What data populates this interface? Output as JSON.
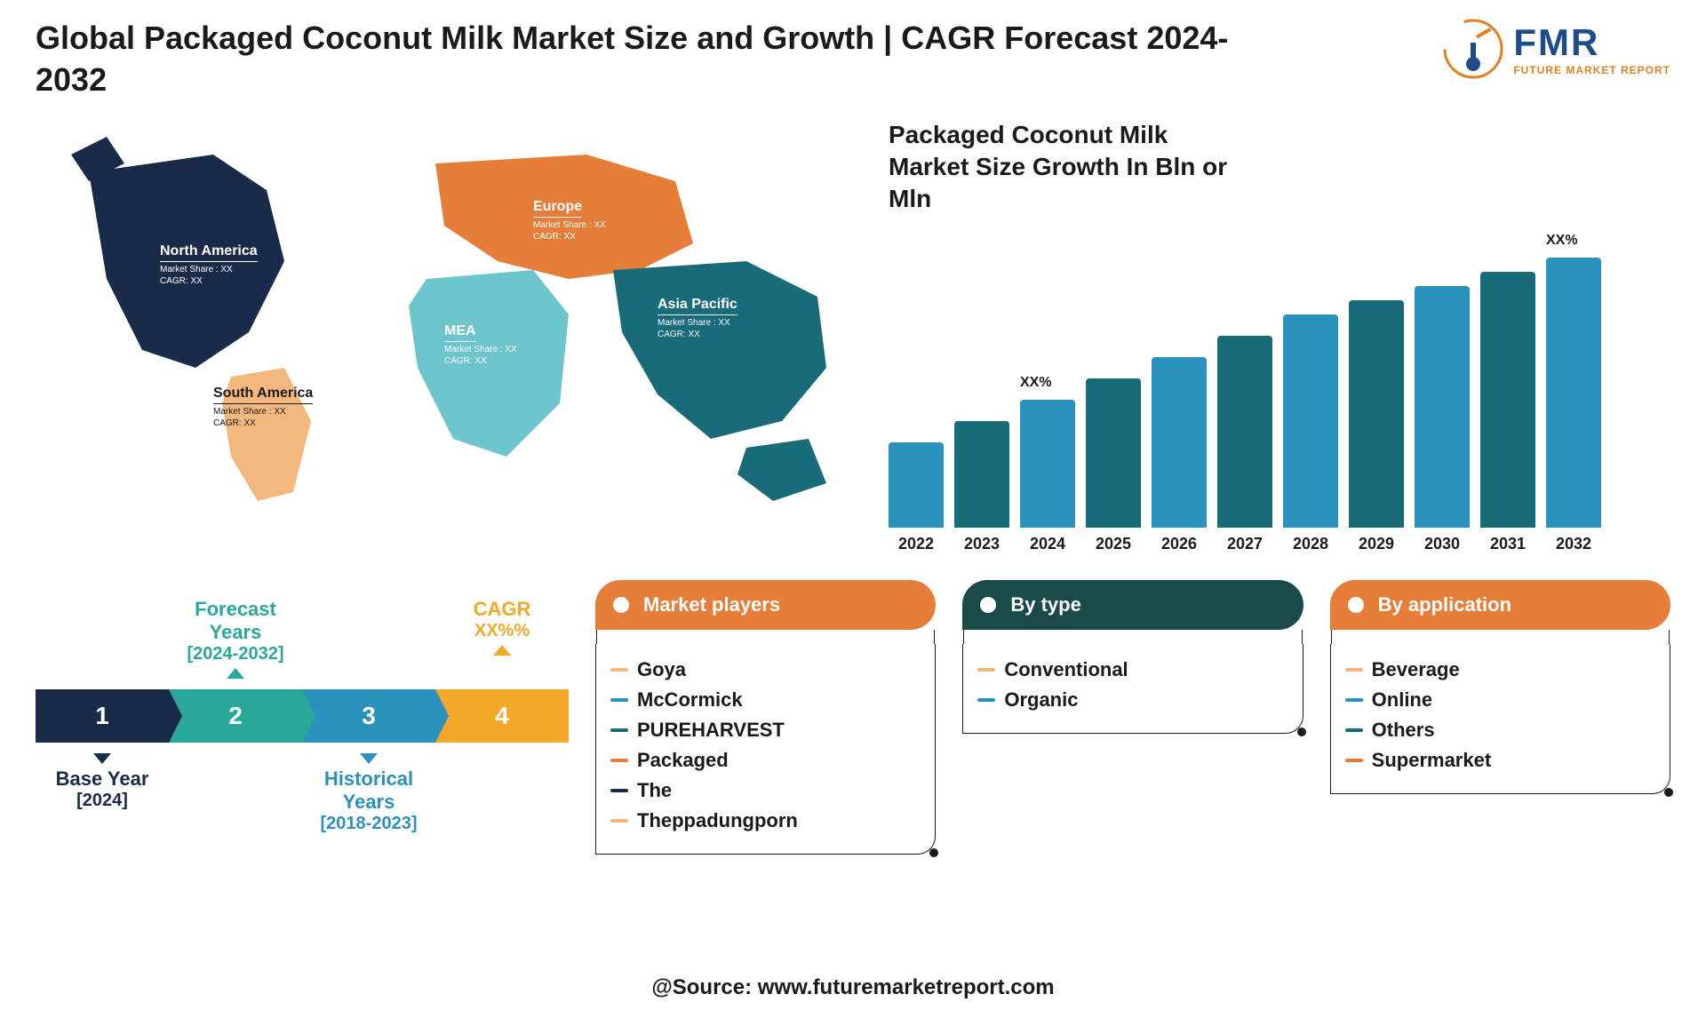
{
  "title": "Global Packaged Coconut Milk Market Size and Growth | CAGR Forecast 2024-2032",
  "logo": {
    "main": "FMR",
    "sub": "FUTURE MARKET REPORT"
  },
  "map": {
    "regions": [
      {
        "name": "North America",
        "share": "Market Share : XX",
        "cagr": "CAGR: XX",
        "color": "#1a2b4a"
      },
      {
        "name": "South America",
        "share": "Market Share : XX",
        "cagr": "CAGR: XX",
        "color": "#f4b77d",
        "text_color": "#1a1a1a"
      },
      {
        "name": "Europe",
        "share": "Market Share : XX",
        "cagr": "CAGR: XX",
        "color": "#e67e3a"
      },
      {
        "name": "MEA",
        "share": "Market Share : XX",
        "cagr": "CAGR: XX",
        "color": "#6cc5cc"
      },
      {
        "name": "Asia Pacific",
        "share": "Market Share : XX",
        "cagr": "CAGR: XX",
        "color": "#1a6b7a"
      }
    ]
  },
  "chart": {
    "title": "Packaged Coconut Milk Market Size Growth In Bln or Mln",
    "type": "bar",
    "years": [
      "2022",
      "2023",
      "2024",
      "2025",
      "2026",
      "2027",
      "2028",
      "2029",
      "2030",
      "2031",
      "2032"
    ],
    "values": [
      120,
      150,
      180,
      210,
      240,
      270,
      300,
      320,
      340,
      360,
      380
    ],
    "max": 400,
    "colors": [
      "#2a92bd",
      "#1a6b7a",
      "#2a92bd",
      "#1a6b7a",
      "#2a92bd",
      "#1a6b7a",
      "#2a92bd",
      "#1a6b7a",
      "#2a92bd",
      "#1a6b7a",
      "#2a92bd"
    ],
    "annotations": {
      "2": "XX%",
      "10": "XX%"
    },
    "label_fontsize": 18,
    "label_fontweight": 700
  },
  "timeline": {
    "segments": [
      {
        "num": "1",
        "color": "#1a2b4a",
        "pos": "bottom",
        "label": "Base Year",
        "sub": "[2024]",
        "label_color": "#1a2b4a"
      },
      {
        "num": "2",
        "color": "#2aa89b",
        "pos": "top",
        "label": "Forecast Years",
        "sub": "[2024-2032]",
        "label_color": "#2aa89b"
      },
      {
        "num": "3",
        "color": "#2a92bd",
        "pos": "bottom",
        "label": "Historical Years",
        "sub": "[2018-2023]",
        "label_color": "#2a92bd"
      },
      {
        "num": "4",
        "color": "#f4a828",
        "pos": "top",
        "label": "CAGR",
        "sub": "XX%%",
        "label_color": "#f4a828"
      }
    ]
  },
  "categories": [
    {
      "title": "Market players",
      "pill_color": "#e67e3a",
      "items": [
        {
          "label": "Goya",
          "dash": "#f4b77d"
        },
        {
          "label": "McCormick",
          "dash": "#2a92bd"
        },
        {
          "label": "PUREHARVEST",
          "dash": "#1a6b7a"
        },
        {
          "label": "Packaged",
          "dash": "#e67e3a"
        },
        {
          "label": "The",
          "dash": "#1a2b4a"
        },
        {
          "label": "Theppadungporn",
          "dash": "#f4b77d"
        }
      ]
    },
    {
      "title": "By type",
      "pill_color": "#1a4b4a",
      "items": [
        {
          "label": "Conventional",
          "dash": "#f4b77d"
        },
        {
          "label": "Organic",
          "dash": "#2a92bd"
        }
      ]
    },
    {
      "title": "By application",
      "pill_color": "#e67e3a",
      "items": [
        {
          "label": "Beverage",
          "dash": "#f4b77d"
        },
        {
          "label": "Online",
          "dash": "#2a92bd"
        },
        {
          "label": "Others",
          "dash": "#1a6b7a"
        },
        {
          "label": "Supermarket",
          "dash": "#e67e3a"
        }
      ]
    }
  ],
  "source": "@Source: www.futuremarketreport.com"
}
